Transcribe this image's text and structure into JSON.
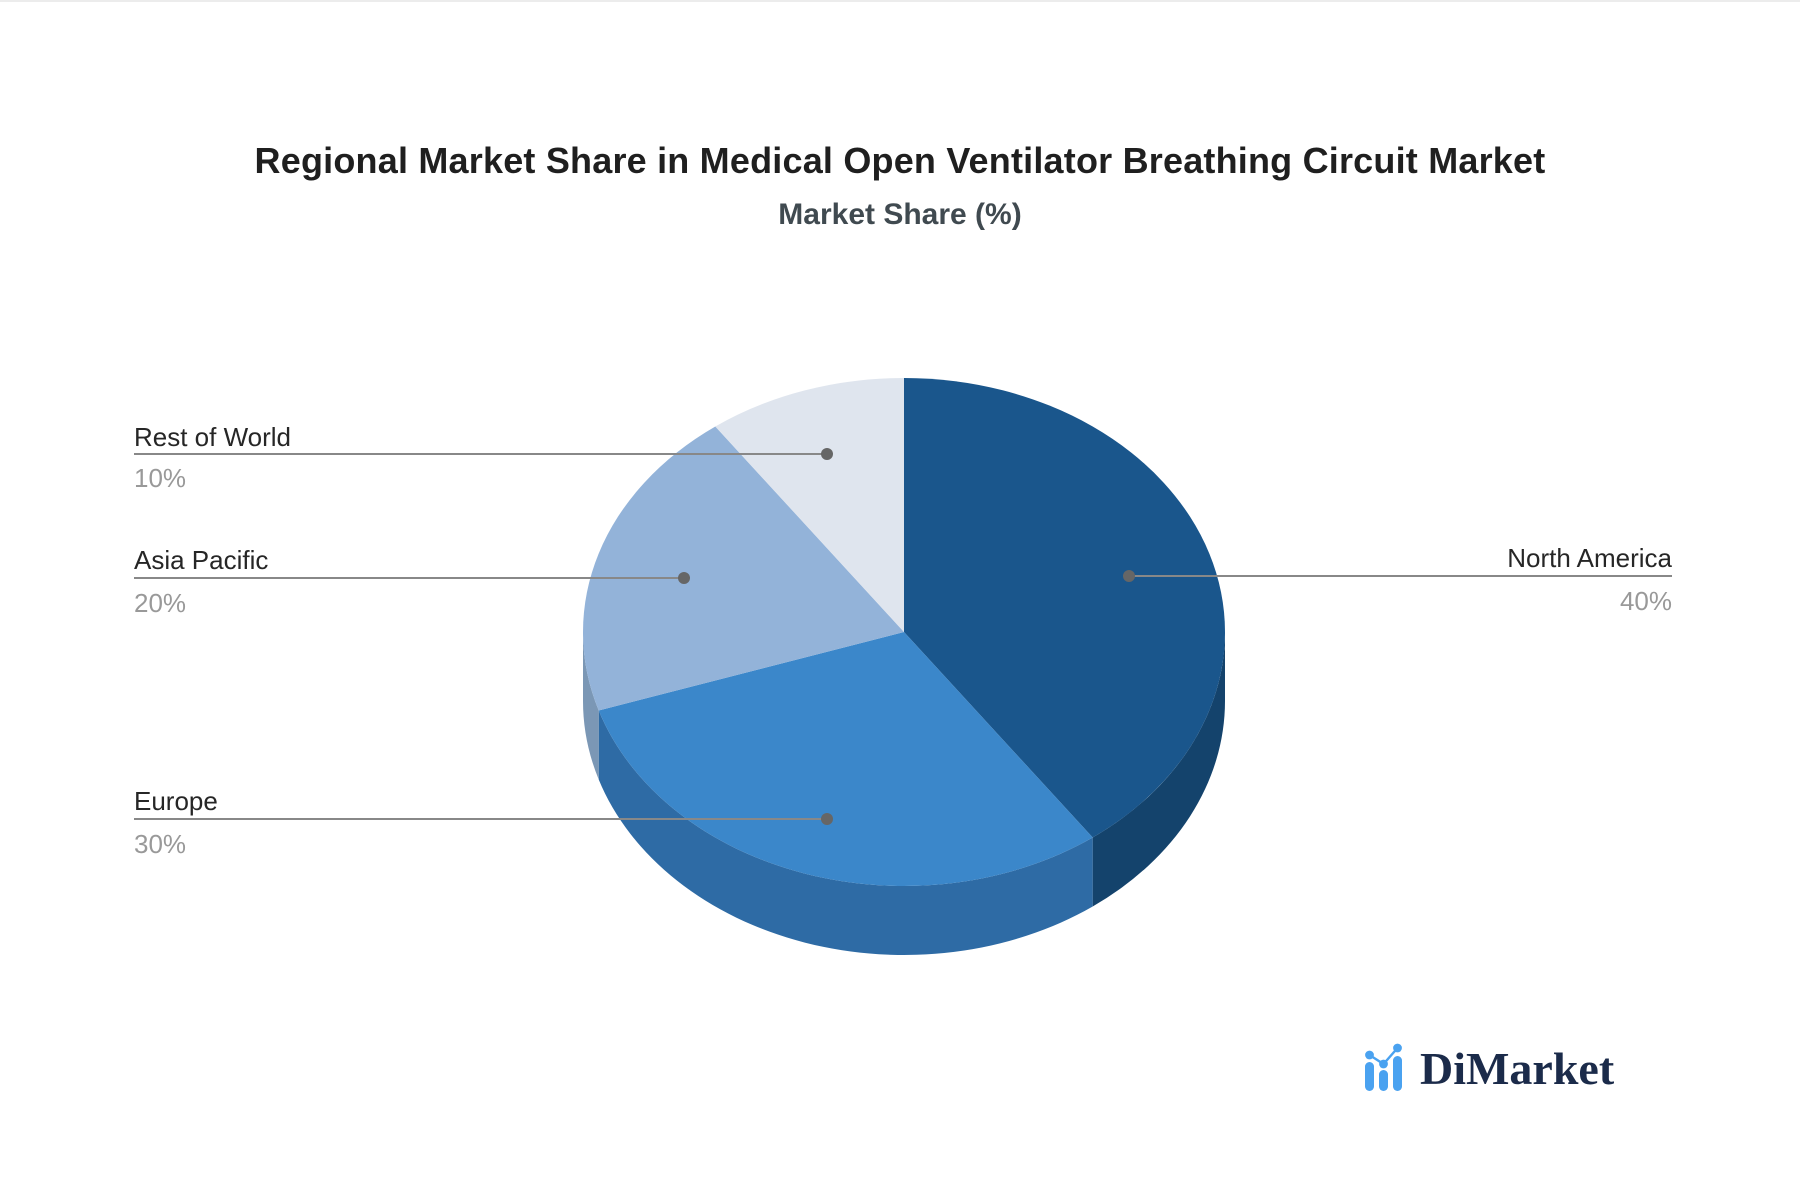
{
  "title": "Regional Market Share in Medical Open Ventilator Breathing Circuit Market",
  "subtitle": "Market Share (%)",
  "chart_data": {
    "type": "pie",
    "title": "Regional Market Share in Medical Open Ventilator Breathing Circuit Market",
    "subtitle": "Market Share (%)",
    "unit": "%",
    "start_angle_deg": 0,
    "direction": "clockwise",
    "style": "3d-extruded",
    "legend_position": "none",
    "labels_shown": true,
    "slices": [
      {
        "label": "North America",
        "value": 40,
        "color": "#1a568c",
        "side_color": "#14436c"
      },
      {
        "label": "Europe",
        "value": 30,
        "color": "#3b87ca",
        "side_color": "#2e6ba5"
      },
      {
        "label": "Asia Pacific",
        "value": 20,
        "color": "#93b3d9",
        "side_color": "#7b97b5"
      },
      {
        "label": "Rest of World",
        "value": 10,
        "color": "#dfe5ee",
        "side_color": "#b9c6d6"
      }
    ]
  },
  "callouts": [
    {
      "name": "Rest of World",
      "pct": "10%",
      "side": "left"
    },
    {
      "name": "Asia Pacific",
      "pct": "20%",
      "side": "left"
    },
    {
      "name": "Europe",
      "pct": "30%",
      "side": "left"
    },
    {
      "name": "North America",
      "pct": "40%",
      "side": "right"
    }
  ],
  "branding": {
    "logo_text": "DiMarket"
  },
  "colors": {
    "leader_line": "#888888",
    "leader_dot": "#666666",
    "label_text": "#262626",
    "pct_text": "#999999",
    "title_text": "#1f1f1f",
    "subtitle_text": "#404a50",
    "logo_accent": "#4aa2f0",
    "logo_text_color": "#1b2b4a",
    "background": "#ffffff"
  }
}
